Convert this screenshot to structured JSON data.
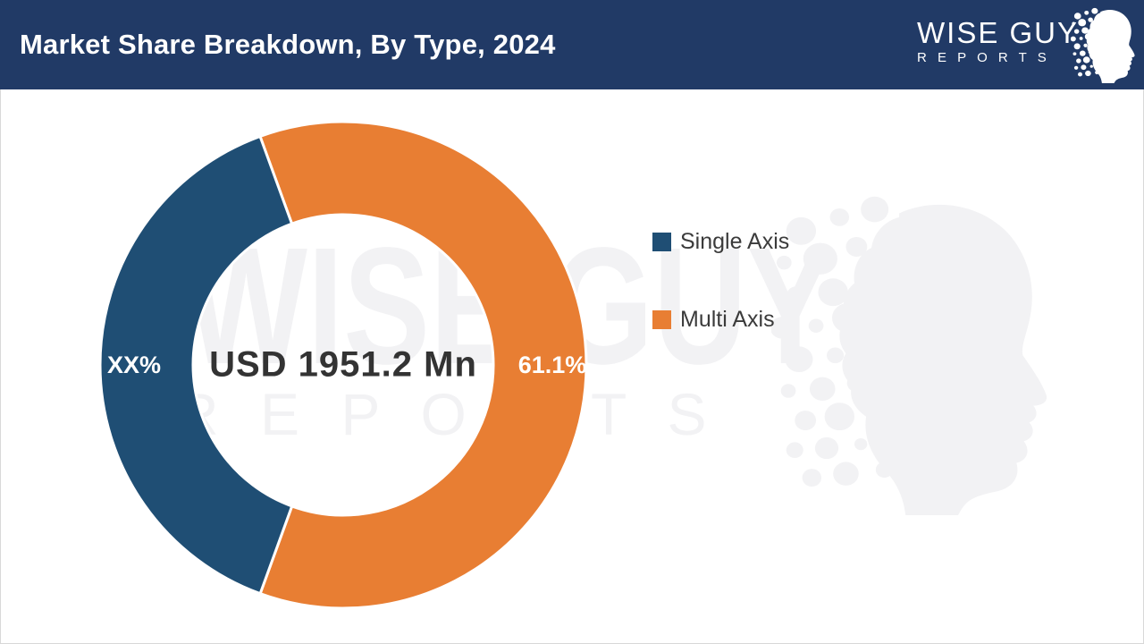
{
  "header": {
    "title": "Market Share Breakdown, By Type, 2024",
    "logo": {
      "name": "WISE GUY",
      "subtitle": "R E P O R T S"
    }
  },
  "watermark": {
    "line1": "WISE GUY",
    "line2": "R E P O R T S"
  },
  "chart_data": {
    "type": "pie",
    "subtype": "donut",
    "title": "Market Share Breakdown, By Type, 2024",
    "center_label": "USD 1951.2 Mn",
    "start_angle_deg": -20,
    "direction": "clockwise",
    "segments": [
      {
        "name": "Multi Axis",
        "value_pct": 61.1,
        "data_label": "61.1%",
        "color": "#e87e33"
      },
      {
        "name": "Single Axis",
        "value_pct": 38.9,
        "data_label": "XX%",
        "color": "#1f4e74"
      }
    ],
    "legend": {
      "position": "right",
      "items": [
        {
          "label": "Single Axis",
          "color": "#1f4e74"
        },
        {
          "label": "Multi Axis",
          "color": "#e87e33"
        }
      ]
    }
  },
  "colors": {
    "header_bg": "#213a66",
    "accent_blue": "#1f4e74",
    "accent_orange": "#e87e33",
    "watermark": "#f2f2f4",
    "center_text": "#333333"
  }
}
